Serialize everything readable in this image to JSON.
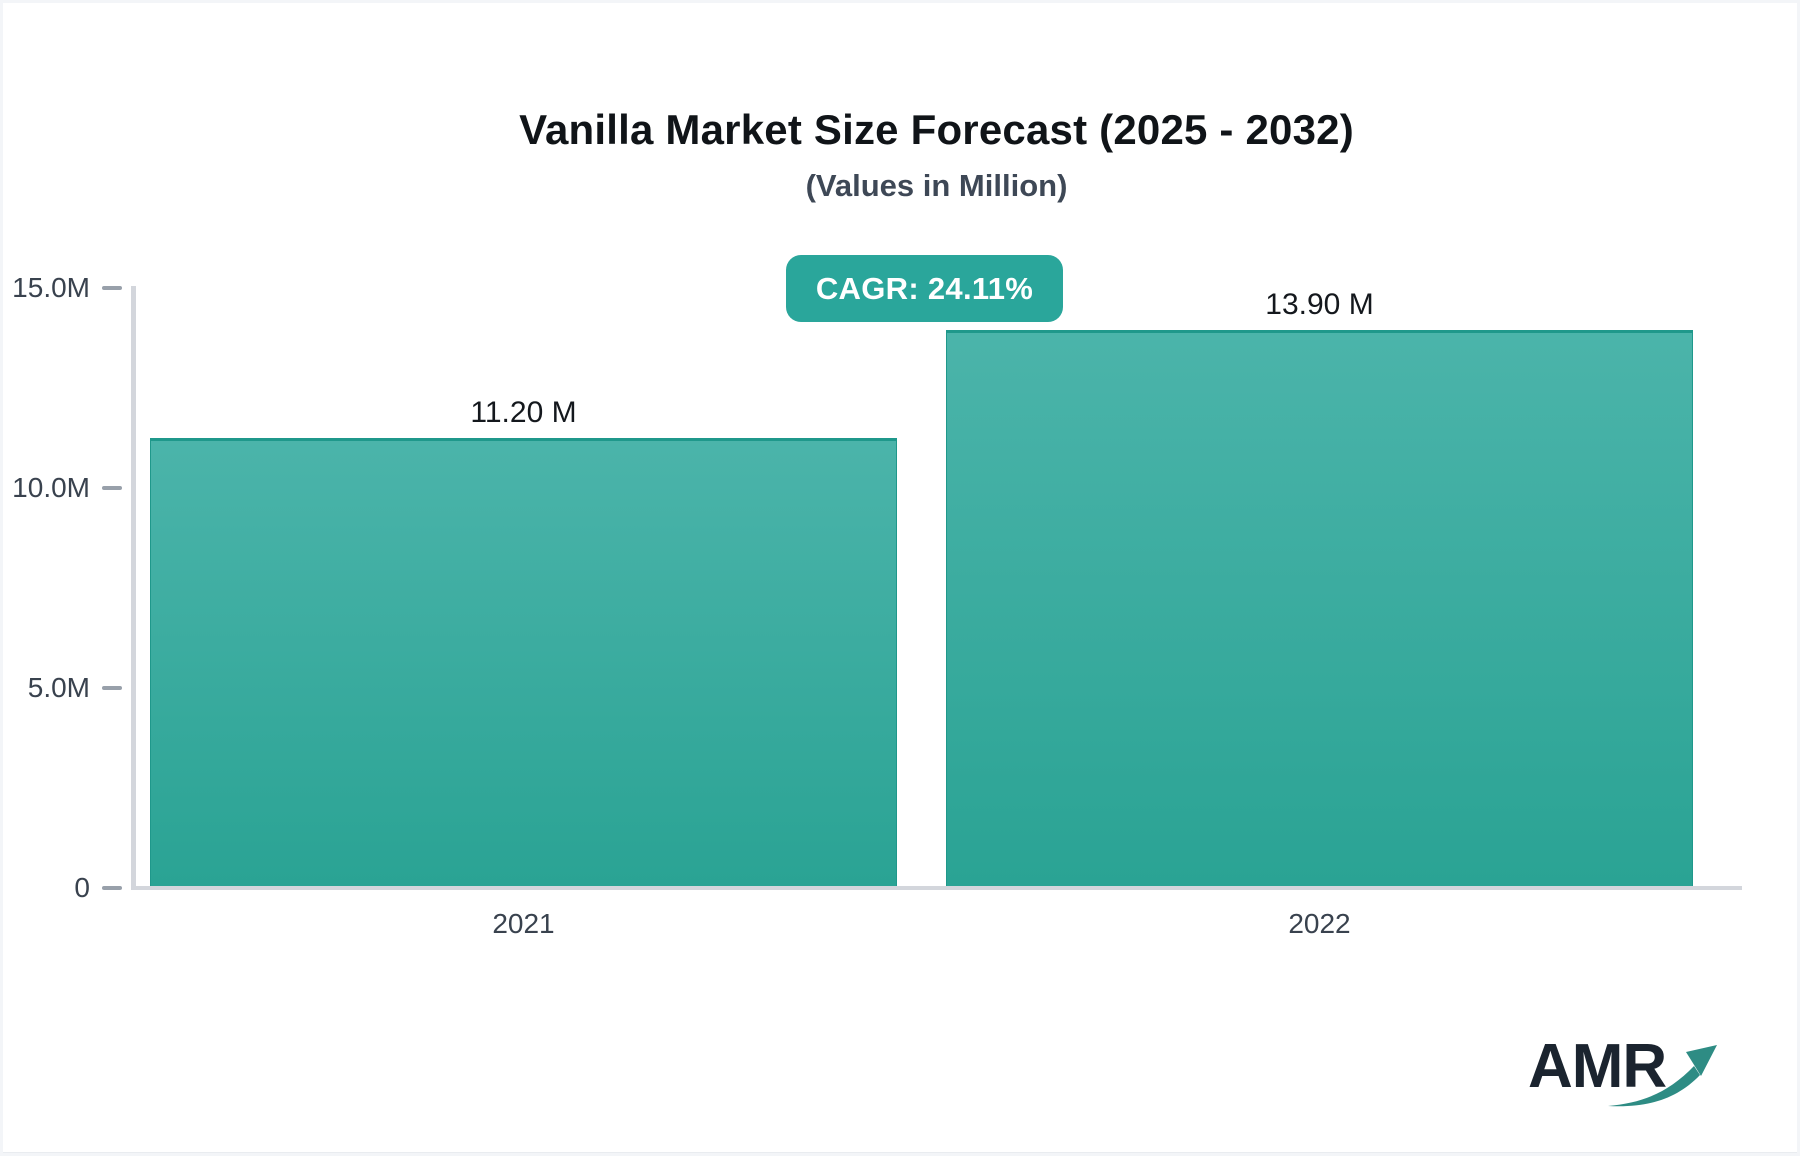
{
  "header": {
    "title": "Vanilla Market Size Forecast (2025 - 2032)",
    "subtitle": "(Values in Million)"
  },
  "badge": {
    "label": "CAGR: 24.11%",
    "bg_color": "#2aa69b",
    "text_color": "#ffffff"
  },
  "chart_data": {
    "type": "bar",
    "title": "Vanilla Market Size Forecast (2025 - 2032)",
    "subtitle": "(Values in Million)",
    "unit": "Million",
    "categories": [
      "2021",
      "2022"
    ],
    "values": [
      11.2,
      13.9
    ],
    "value_labels": [
      "11.20 M",
      "13.90 M"
    ],
    "cagr_annotation": "CAGR: 24.11%",
    "ylim": [
      0,
      15
    ],
    "yticks": [
      {
        "value": 0,
        "label": "0"
      },
      {
        "value": 5,
        "label": "5.0M"
      },
      {
        "value": 10,
        "label": "10.0M"
      },
      {
        "value": 15,
        "label": "15.0M"
      }
    ],
    "grid": false,
    "legend": false,
    "bar_color_top": "#4bb4aa",
    "bar_color_bottom": "#2aa394",
    "bar_border_color": "#1f988b",
    "axis_color": "#d3d6dc"
  },
  "logo": {
    "text": "AMR",
    "arrow_icon": "growth-arrow-icon",
    "text_color": "#1b242f",
    "arrow_color": "#2e8c84"
  }
}
